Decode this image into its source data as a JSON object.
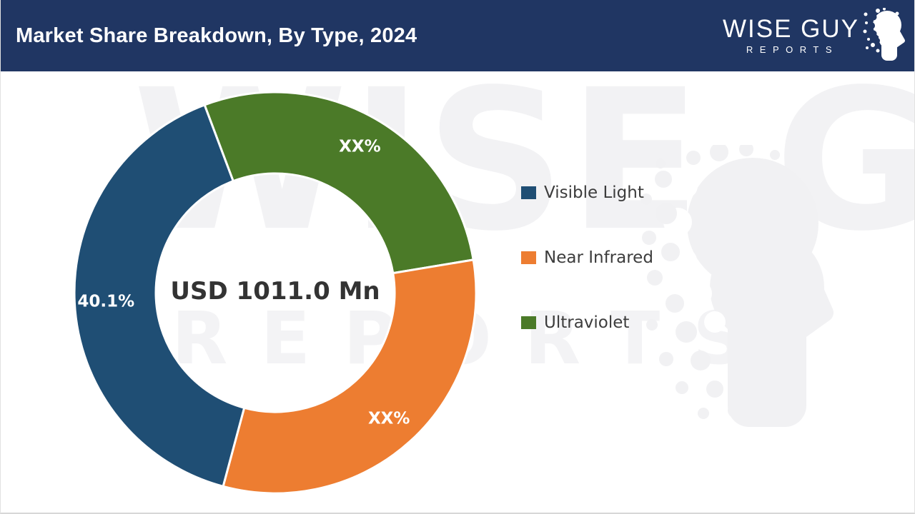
{
  "header": {
    "title": "Market Share Breakdown, By Type, 2024",
    "logo": {
      "line1": "WISE GUY",
      "line2": "REPORTS"
    }
  },
  "watermark": {
    "line1": "WISE GUY",
    "line2": "REPORTS"
  },
  "chart_data": {
    "type": "pie",
    "subtype": "donut",
    "title": "Market Share Breakdown, By Type, 2024",
    "center_label": "USD 1011.0 Mn",
    "start_angle_deg": -20.6,
    "legend_position": "right",
    "slices": [
      {
        "label": "Ultraviolet",
        "display_value": "XX%",
        "share_pct": 28.1,
        "color": "#4B7A28"
      },
      {
        "label": "Near Infrared",
        "display_value": "XX%",
        "share_pct": 31.8,
        "color": "#ED7D31"
      },
      {
        "label": "Visible Light",
        "display_value": "40.1%",
        "share_pct": 40.1,
        "color": "#1F4E74"
      }
    ],
    "legend": [
      {
        "label": "Visible Light",
        "color": "#1F4E74"
      },
      {
        "label": "Near Infrared",
        "color": "#ED7D31"
      },
      {
        "label": "Ultraviolet",
        "color": "#4B7A28"
      }
    ]
  },
  "colors": {
    "header_bg": "#203663",
    "center_text": "#333333",
    "legend_text": "#3C3C3C",
    "watermark": "#F2F2F4",
    "slice_gap": "#FFFFFF"
  },
  "icons": {
    "logo_face": "wiseguy-dotted-face",
    "background_face": "wiseguy-dotted-face-watermark"
  }
}
